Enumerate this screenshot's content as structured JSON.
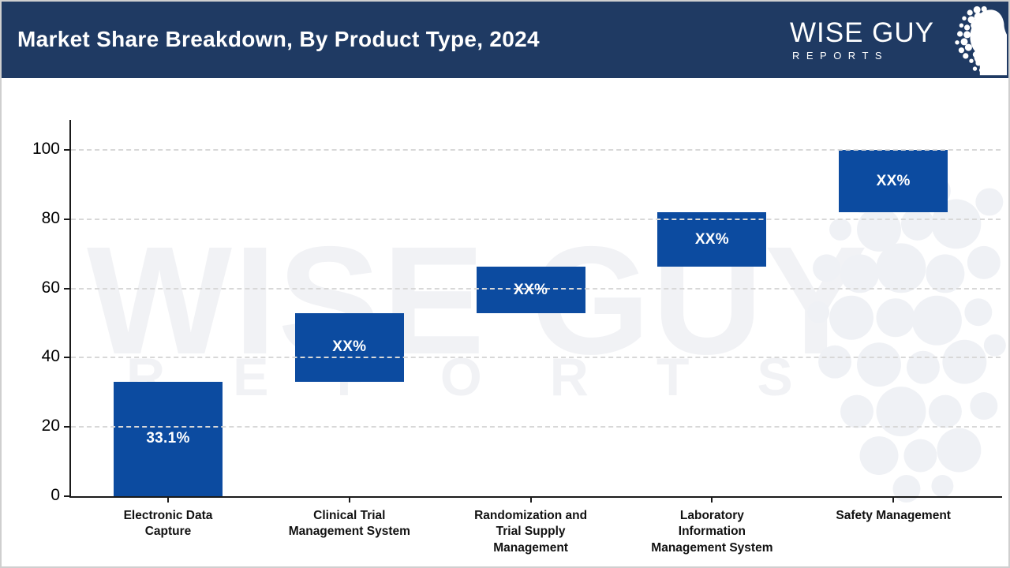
{
  "header": {
    "title": "Market Share Breakdown, By Product Type, 2024",
    "logo": {
      "line1": "WISE GUY",
      "line2": "REPORTS"
    }
  },
  "watermark": {
    "line1": "WISE GUY",
    "line2": "REPORTS"
  },
  "colors": {
    "header_bg": "#1f3a63",
    "bar": "#0c4ba0",
    "bar_label": "#ffffff",
    "gridline": "#d8d8d8",
    "axis": "#1a1a1a",
    "watermark": "#f1f2f5"
  },
  "chart_data": {
    "type": "bar",
    "subtype": "waterfall-floating-segments",
    "title": "Market Share Breakdown, By Product Type, 2024",
    "categories": [
      "Electronic Data Capture",
      "Clinical Trial Management System",
      "Randomization and Trial Supply Management",
      "Laboratory Information Management System",
      "Safety Management"
    ],
    "segments": [
      {
        "category": "Electronic Data Capture",
        "category_lines": [
          "Electronic Data",
          "Capture"
        ],
        "start": 0,
        "end": 33.1,
        "label": "33.1%"
      },
      {
        "category": "Clinical Trial Management System",
        "category_lines": [
          "Clinical Trial",
          "Management System"
        ],
        "start": 33.1,
        "end": 52.8,
        "label": "XX%"
      },
      {
        "category": "Randomization and Trial Supply Management",
        "category_lines": [
          "Randomization and",
          "Trial Supply",
          "Management"
        ],
        "start": 52.8,
        "end": 66.3,
        "label": "XX%"
      },
      {
        "category": "Laboratory Information Management System",
        "category_lines": [
          "Laboratory",
          "Information",
          "Management System"
        ],
        "start": 66.3,
        "end": 81.9,
        "label": "XX%"
      },
      {
        "category": "Safety Management",
        "category_lines": [
          "Safety Management"
        ],
        "start": 81.9,
        "end": 100,
        "label": "XX%"
      }
    ],
    "yticks": [
      0,
      20,
      40,
      60,
      80,
      100
    ],
    "ylim": [
      0,
      105
    ],
    "xlabel": "",
    "ylabel": "",
    "grid": "horizontal-dashed",
    "legend": "none",
    "value_note": "Bars 2-5 display masked values as XX%; numeric start/end estimated from axis"
  }
}
